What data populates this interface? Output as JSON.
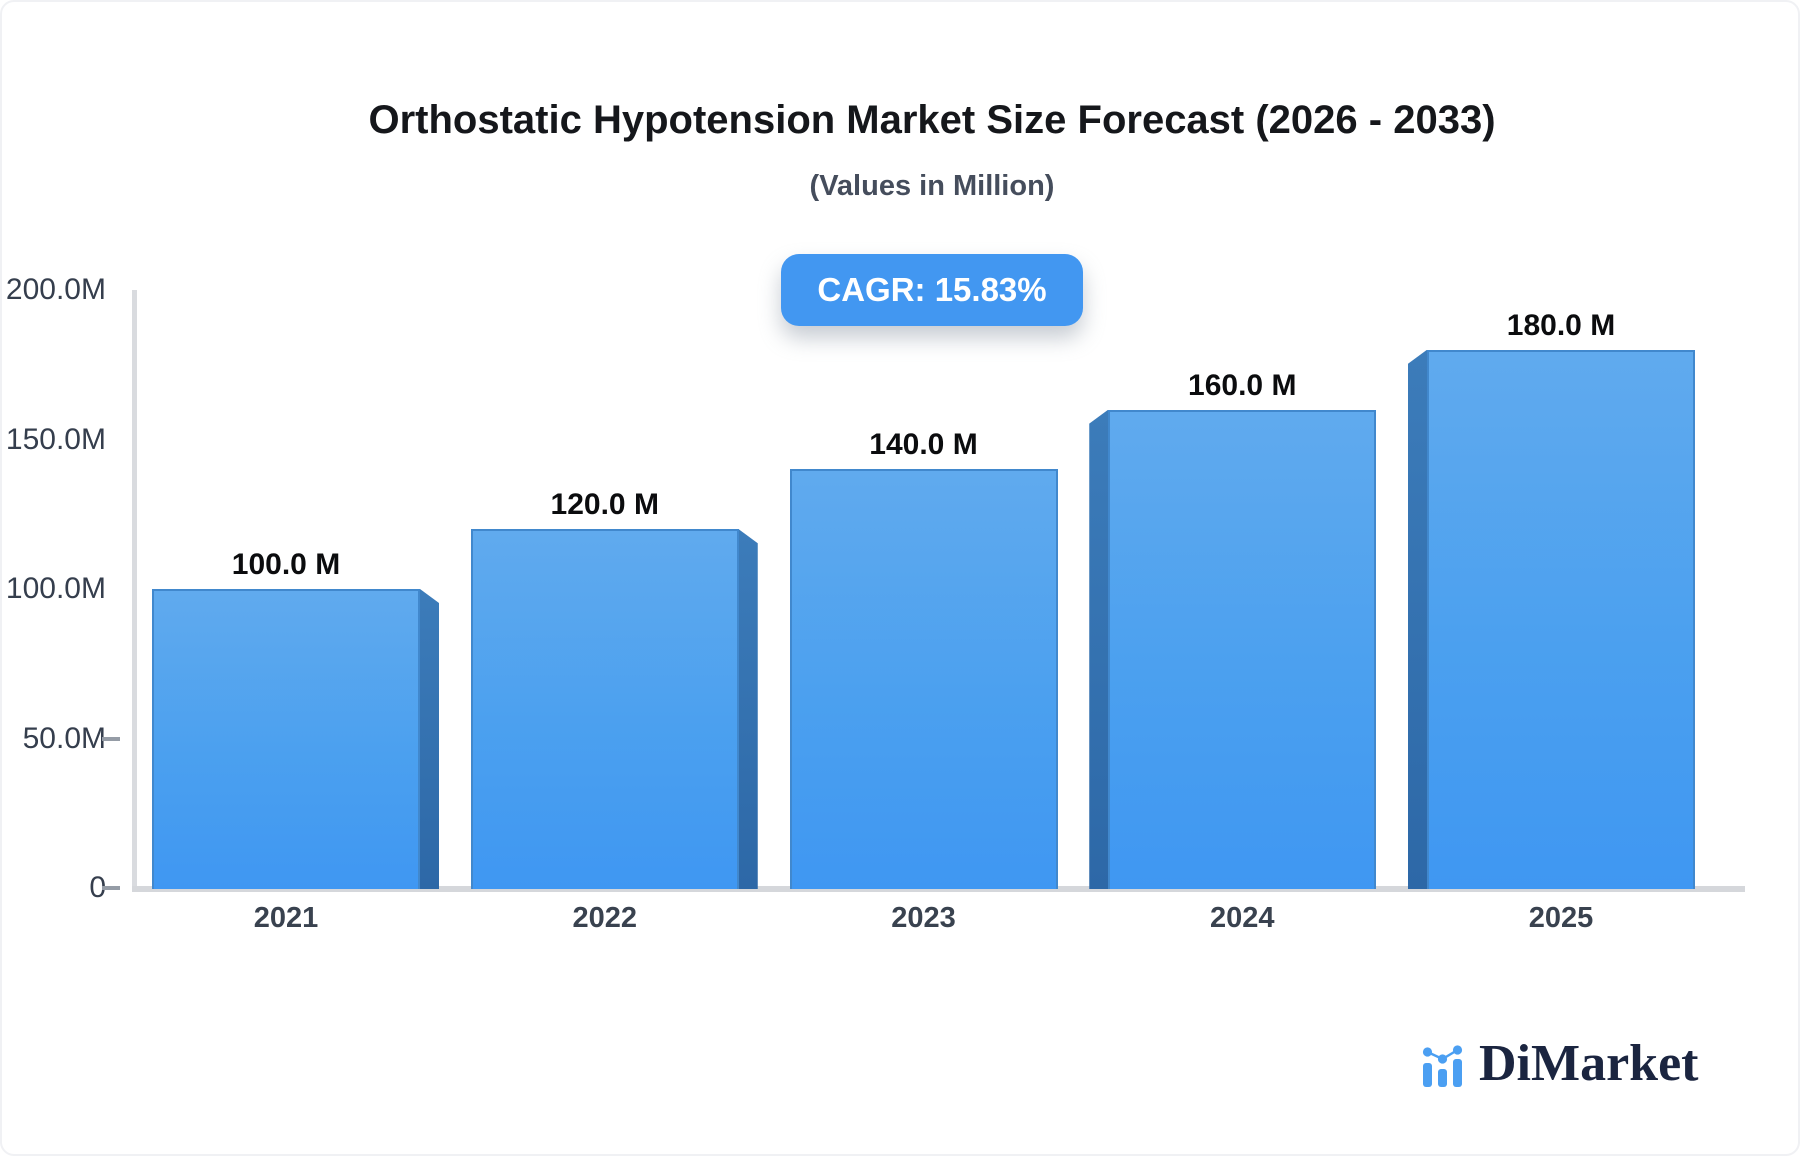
{
  "header": {
    "title": "Orthostatic Hypotension Market Size Forecast (2026 - 2033)",
    "subtitle": "(Values in Million)",
    "cagr_badge": "CAGR: 15.83%"
  },
  "chart_data": {
    "type": "bar",
    "title": "Orthostatic Hypotension Market Size Forecast (2026 - 2033)",
    "subtitle": "(Values in Million)",
    "cagr_percent": 15.83,
    "categories": [
      "2021",
      "2022",
      "2023",
      "2024",
      "2025"
    ],
    "values": [
      100.0,
      120.0,
      140.0,
      160.0,
      180.0
    ],
    "bar_labels": [
      "100.0 M",
      "120.0 M",
      "140.0 M",
      "160.0 M",
      "180.0 M"
    ],
    "unit": "Million",
    "xlabel": "",
    "ylabel": "",
    "ylim": [
      0,
      200
    ],
    "y_ticks": [
      {
        "label": "200.0M",
        "value": 200,
        "dash": false
      },
      {
        "label": "150.0M",
        "value": 150,
        "dash": false
      },
      {
        "label": "100.0M",
        "value": 100,
        "dash": false
      },
      {
        "label": "50.0M",
        "value": 50,
        "dash": true
      },
      {
        "label": "0",
        "value": 0,
        "dash": true
      }
    ],
    "grid": false,
    "legend_position": "none",
    "colors": {
      "bar_gradient_top": "#60aaee",
      "bar_gradient_bottom": "#3f97f2",
      "bar_side_3d": "#2f6cad",
      "bar_border": "#4188cd",
      "axis_line": "#d5d7db",
      "badge_background": "#4297f1",
      "badge_text": "#ffffff",
      "title_text": "#15171b",
      "brand_blue": "#4b9ff2",
      "brand_navy": "#1b2540"
    }
  },
  "footer": {
    "brand": "DiMarket"
  }
}
